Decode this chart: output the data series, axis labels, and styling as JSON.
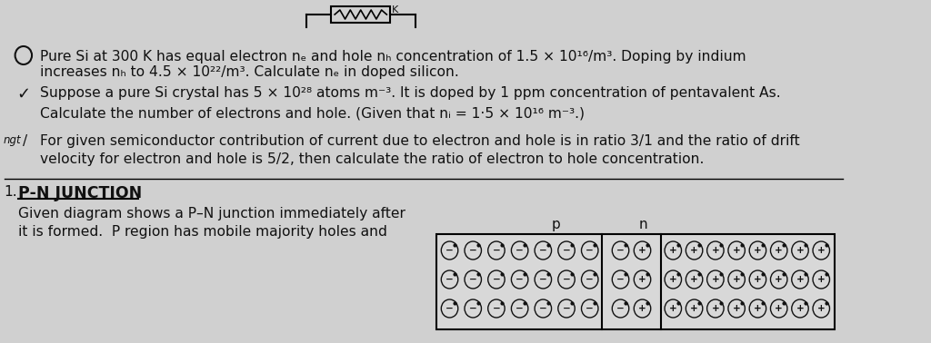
{
  "bg_color": "#d0d0d0",
  "text_color": "#111111",
  "font_size_main": 11.2,
  "font_size_title": 12.5,
  "q1_line1": "Pure Si at 300 K has equal electron nₑ and hole nₕ concentration of 1.5 × 10¹⁶/m³. Doping by indium",
  "q1_line2": "increases nₕ to 4.5 × 10²²/m³. Calculate nₑ in doped silicon.",
  "q2_line1": "Suppose a pure Si crystal has 5 × 10²⁸ atoms m⁻³. It is doped by 1 ppm concentration of pentavalent As.",
  "q2_line2": "Calculate the number of electrons and hole. (Given that nᵢ = 1·5 × 10¹⁶ m⁻³.)",
  "q3_line1": "For given semiconductor contribution of current due to electron and hole is in ratio 3/1 and the ratio of drift",
  "q3_line2": "velocity for electron and hole is 5/2, then calculate the ratio of electron to hole concentration.",
  "section_title": "P-N JUNCTION",
  "pn_line1": "Given diagram shows a P–N junction immediately after",
  "pn_line2": "it is formed.  P region has mobile majority holes and",
  "p_label": "p",
  "n_label": "n",
  "k_label": "K"
}
